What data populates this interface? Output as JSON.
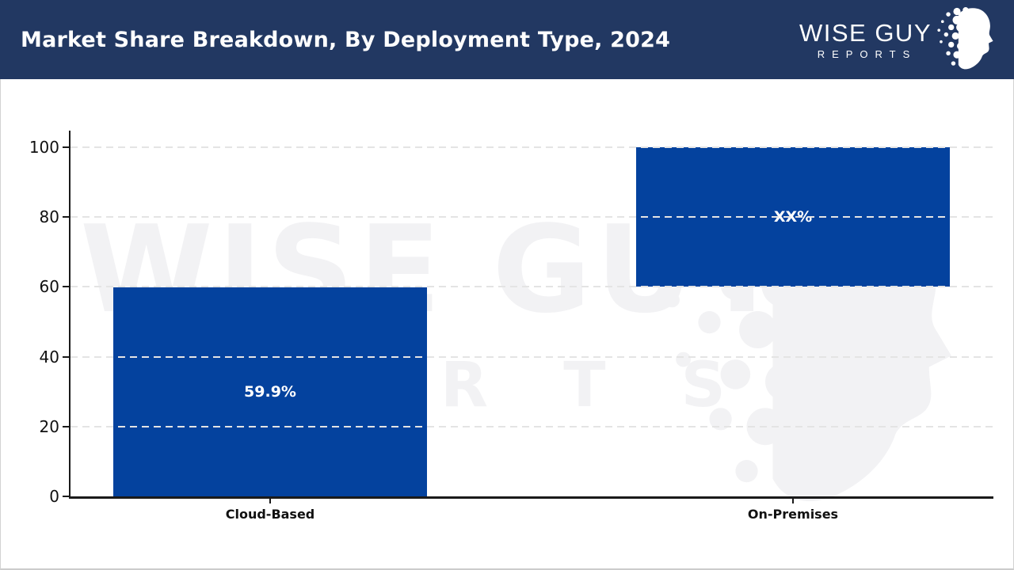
{
  "header": {
    "title": "Market Share Breakdown, By Deployment Type, 2024",
    "logo": {
      "line1": "WISE GUY",
      "line2": "REPORTS"
    }
  },
  "watermark": {
    "line1": "WISE GUY",
    "line2": "R T S"
  },
  "colors": {
    "header_bg": "#223862",
    "bar": "#04429e",
    "bar_label": "#ffffff",
    "axis": "#1a1a1a",
    "grid": "#e4e4e4",
    "watermark": "#f2f2f4",
    "border": "#cccccc"
  },
  "chart_data": {
    "type": "bar",
    "title": "Market Share Breakdown, By Deployment Type, 2024",
    "categories": [
      "Cloud-Based",
      "On-Premises"
    ],
    "bars": [
      {
        "category": "Cloud-Based",
        "from": 0,
        "to": 59.9,
        "label": "59.9%"
      },
      {
        "category": "On-Premises",
        "from": 60,
        "to": 100,
        "label": "XX%"
      }
    ],
    "yticks": [
      0,
      20,
      40,
      60,
      80,
      100
    ],
    "ylim": [
      0,
      105
    ],
    "xlabel": "",
    "ylabel": "",
    "grid": "horizontal-dashed",
    "legend_position": "none"
  }
}
